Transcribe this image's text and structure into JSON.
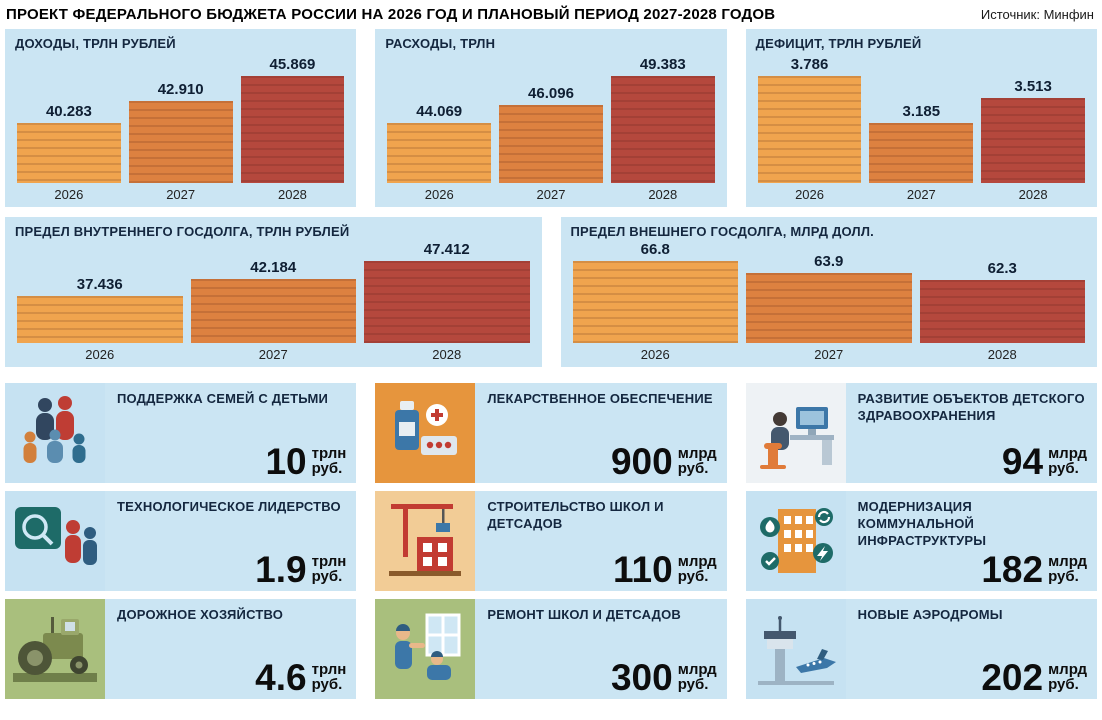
{
  "header": {
    "title": "ПРОЕКТ ФЕДЕРАЛЬНОГО БЮДЖЕТА РОССИИ НА 2026 ГОД И ПЛАНОВЫЙ ПЕРИОД 2027-2028 ГОДОВ",
    "source": "Источник: Минфин"
  },
  "bar_colors": [
    "#F0A44E",
    "#DD8140",
    "#B5483D"
  ],
  "chart_data": [
    {
      "type": "bar",
      "title": "ДОХОДЫ, ТРЛН РУБЛЕЙ",
      "categories": [
        "2026",
        "2027",
        "2028"
      ],
      "values": [
        40.283,
        42.91,
        45.869
      ],
      "labels": [
        "40.283",
        "42.910",
        "45.869"
      ]
    },
    {
      "type": "bar",
      "title": "РАСХОДЫ, ТРЛН",
      "categories": [
        "2026",
        "2027",
        "2028"
      ],
      "values": [
        44.069,
        46.096,
        49.383
      ],
      "labels": [
        "44.069",
        "46.096",
        "49.383"
      ]
    },
    {
      "type": "bar",
      "title": "ДЕФИЦИТ, ТРЛН РУБЛЕЙ",
      "categories": [
        "2026",
        "2027",
        "2028"
      ],
      "values": [
        3.786,
        3.185,
        3.513
      ],
      "labels": [
        "3.786",
        "3.185",
        "3.513"
      ]
    },
    {
      "type": "bar",
      "title": "ПРЕДЕЛ ВНУТРЕННЕГО ГОСДОЛГА, ТРЛН РУБЛЕЙ",
      "categories": [
        "2026",
        "2027",
        "2028"
      ],
      "values": [
        37.436,
        42.184,
        47.412
      ],
      "labels": [
        "37.436",
        "42.184",
        "47.412"
      ]
    },
    {
      "type": "bar",
      "title": "ПРЕДЕЛ ВНЕШНЕГО ГОСДОЛГА, МЛРД ДОЛЛ.",
      "categories": [
        "2026",
        "2027",
        "2028"
      ],
      "values": [
        66.8,
        63.9,
        62.3
      ],
      "labels": [
        "66.8",
        "63.9",
        "62.3"
      ],
      "min_pct": 62
    }
  ],
  "cards": [
    {
      "title": "ПОДДЕРЖКА СЕМЕЙ С ДЕТЬМИ",
      "value": "10",
      "unit_top": "трлн",
      "unit_bottom": "руб.",
      "icon": "family-icon"
    },
    {
      "title": "ЛЕКАРСТВЕННОЕ ОБЕСПЕЧЕНИЕ",
      "value": "900",
      "unit_top": "млрд",
      "unit_bottom": "руб.",
      "icon": "medicine-icon"
    },
    {
      "title": "РАЗВИТИЕ ОБЪЕКТОВ ДЕТСКОГО ЗДРАВООХРАНЕНИЯ",
      "value": "94",
      "unit_top": "млрд",
      "unit_bottom": "руб.",
      "icon": "child-healthcare-icon"
    },
    {
      "title": "ТЕХНОЛОГИЧЕСКОЕ ЛИДЕРСТВО",
      "value": "1.9",
      "unit_top": "трлн",
      "unit_bottom": "руб.",
      "icon": "tech-leadership-icon"
    },
    {
      "title": "СТРОИТЕЛЬСТВО ШКОЛ И ДЕТСАДОВ",
      "value": "110",
      "unit_top": "млрд",
      "unit_bottom": "руб.",
      "icon": "school-construction-icon"
    },
    {
      "title": "МОДЕРНИЗАЦИЯ КОММУНАЛЬНОЙ ИНФРАСТРУКТУРЫ",
      "value": "182",
      "unit_top": "млрд",
      "unit_bottom": "руб.",
      "icon": "utilities-icon"
    },
    {
      "title": "ДОРОЖНОЕ ХОЗЯЙСТВО",
      "value": "4.6",
      "unit_top": "трлн",
      "unit_bottom": "руб.",
      "icon": "road-roller-icon"
    },
    {
      "title": "РЕМОНТ ШКОЛ И ДЕТСАДОВ",
      "value": "300",
      "unit_top": "млрд",
      "unit_bottom": "руб.",
      "icon": "school-repair-icon"
    },
    {
      "title": "НОВЫЕ АЭРОДРОМЫ",
      "value": "202",
      "unit_top": "млрд",
      "unit_bottom": "руб.",
      "icon": "aerodrome-icon"
    }
  ]
}
